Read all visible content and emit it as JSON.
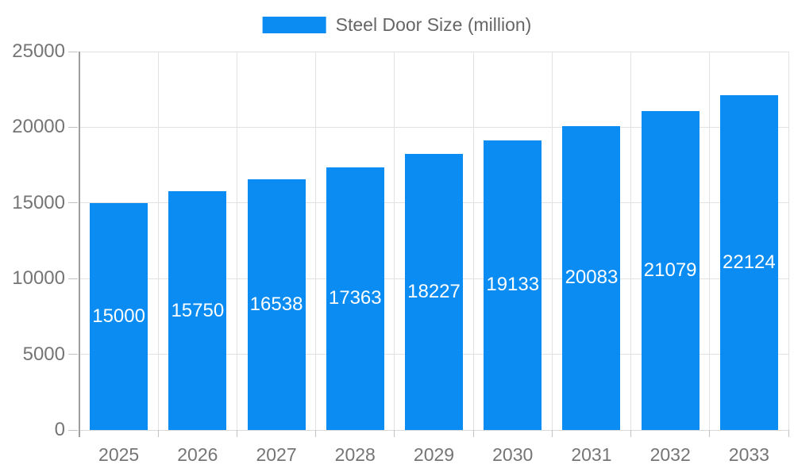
{
  "chart_data": {
    "type": "bar",
    "title": "",
    "categories": [
      "2025",
      "2026",
      "2027",
      "2028",
      "2029",
      "2030",
      "2031",
      "2032",
      "2033"
    ],
    "series": [
      {
        "name": "Steel Door Size (million)",
        "values": [
          15000,
          15750,
          16538,
          17363,
          18227,
          19133,
          20083,
          21079,
          22124
        ]
      }
    ],
    "ylim": [
      0,
      25000
    ],
    "yticks": [
      0,
      5000,
      10000,
      15000,
      20000,
      25000
    ],
    "ytick_labels": [
      "0",
      "5000",
      "10000",
      "15000",
      "20000",
      "25000"
    ],
    "grid": true,
    "legend_position": "top-center",
    "bar_label_position": "inside-middle",
    "colors": {
      "bar": "#0a8cf2",
      "bar_label": "#ffffff",
      "grid_line": "#e2e2e2",
      "y_axis_line": "#9e9e9e",
      "x_axis_line": "#d9d9d9",
      "tick": "#c2c2c2",
      "axis_text": "#757575",
      "legend_text": "#666666"
    }
  }
}
